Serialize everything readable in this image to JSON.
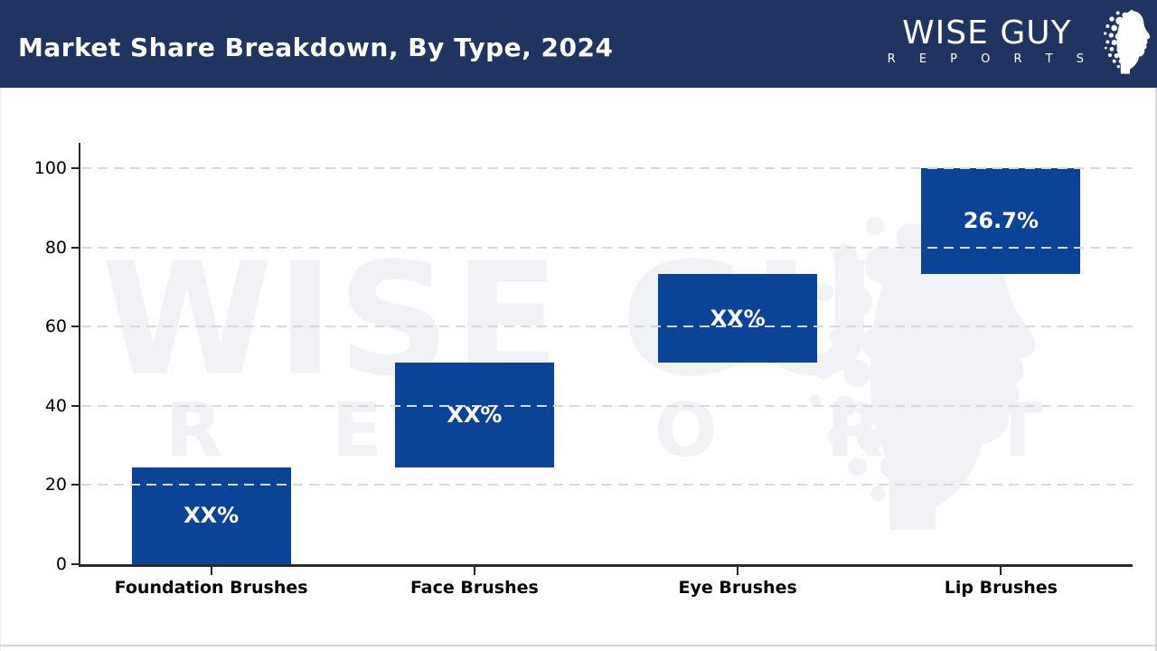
{
  "page": {
    "background": "#ffffff",
    "frame_border_color": "#d9d9d9"
  },
  "header": {
    "background_color": "#203461",
    "title": "Market Share Breakdown, By Type, 2024",
    "logo": {
      "line1": "WISE GUY",
      "line2": "R E P O R T S"
    }
  },
  "watermark": {
    "line1": "WISE GUY",
    "line2": "R E P O R T S"
  },
  "chart_data": {
    "type": "bar",
    "subtype": "waterfall",
    "title": "Market Share Breakdown, By Type, 2024",
    "categories": [
      "Foundation Brushes",
      "Face Brushes",
      "Eye Brushes",
      "Lip Brushes"
    ],
    "segments": [
      {
        "category": "Foundation Brushes",
        "start": 0,
        "end": 24.5,
        "value": 24.5,
        "label": "XX%"
      },
      {
        "category": "Face Brushes",
        "start": 24.5,
        "end": 50.8,
        "value": 26.3,
        "label": "XX%"
      },
      {
        "category": "Eye Brushes",
        "start": 50.8,
        "end": 73.3,
        "value": 22.5,
        "label": "XX%"
      },
      {
        "category": "Lip Brushes",
        "start": 73.3,
        "end": 100,
        "value": 26.7,
        "label": "26.7%"
      }
    ],
    "yticks": [
      0,
      20,
      40,
      60,
      80,
      100
    ],
    "ylim": [
      0,
      106
    ],
    "xlabel": "",
    "ylabel": "",
    "legend": "none",
    "grid": "horizontal-dashed",
    "grid_on_top_of_bars": true,
    "bar_color": "#0b4397",
    "bar_label_color": "#ffffff",
    "axis_color": "#262626",
    "grid_color": "#d9d9d9",
    "tick_label_color": "#000000"
  }
}
